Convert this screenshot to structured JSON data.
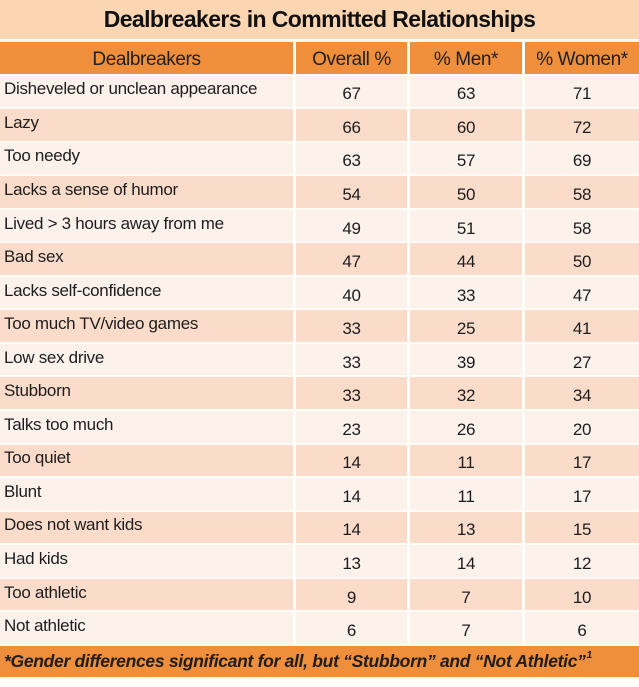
{
  "chart_data": {
    "type": "table",
    "title": "Dealbreakers in Committed Relationships",
    "columns": [
      "Dealbreakers",
      "Overall %",
      "% Men*",
      "% Women*"
    ],
    "rows": [
      [
        "Disheveled or unclean appearance",
        67,
        63,
        71
      ],
      [
        "Lazy",
        66,
        60,
        72
      ],
      [
        "Too needy",
        63,
        57,
        69
      ],
      [
        "Lacks a sense of humor",
        54,
        50,
        58
      ],
      [
        "Lived > 3 hours away from me",
        49,
        51,
        58
      ],
      [
        "Bad sex",
        47,
        44,
        50
      ],
      [
        "Lacks self-confidence",
        40,
        33,
        47
      ],
      [
        "Too much TV/video games",
        33,
        25,
        41
      ],
      [
        "Low sex drive",
        33,
        39,
        27
      ],
      [
        "Stubborn",
        33,
        32,
        34
      ],
      [
        "Talks too much",
        23,
        26,
        20
      ],
      [
        "Too quiet",
        14,
        11,
        17
      ],
      [
        "Blunt",
        14,
        11,
        17
      ],
      [
        "Does not want kids",
        14,
        13,
        15
      ],
      [
        "Had kids",
        13,
        14,
        12
      ],
      [
        "Too athletic",
        9,
        7,
        10
      ],
      [
        "Not athletic",
        6,
        7,
        6
      ]
    ],
    "footnote": "*Gender differences significant for all, but “Stubborn” and “Not Athletic”¹",
    "layout_hints": {
      "grid": "alternating row shading",
      "legend_position": "none"
    }
  },
  "footnote": {
    "text": "*Gender differences significant for all, but “Stubborn” and “Not Athletic”",
    "sup": "1"
  },
  "colors": {
    "title_bg": "#fcd6b2",
    "header_bg": "#ef8e3b",
    "row_light": "#fdf2eb",
    "row_dark": "#fbdcca",
    "footer_bg": "#ef8e3b",
    "text": "#1d1d1d"
  }
}
